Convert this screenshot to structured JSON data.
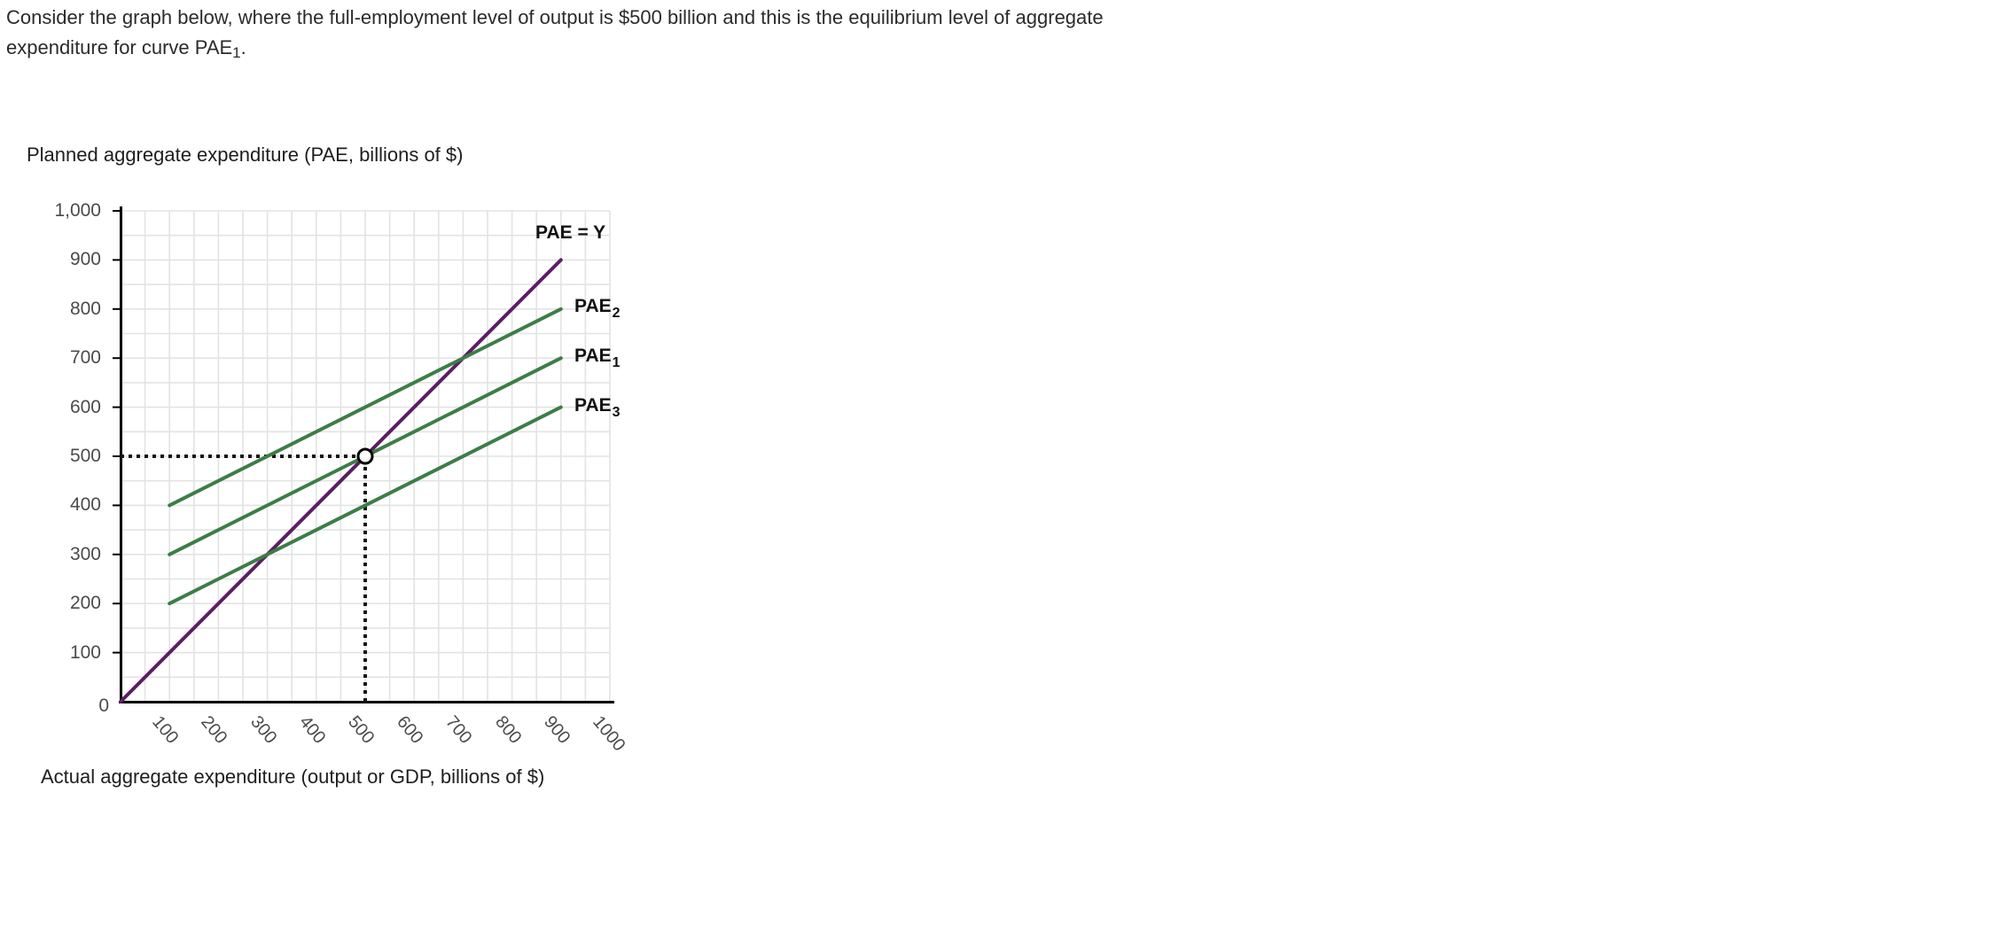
{
  "question": {
    "line1": "Consider the graph below, where the full-employment level of output is $500 billion and this is the equilibrium level of aggregate",
    "line2_pre": "expenditure for curve PAE",
    "line2_sub": "1",
    "line2_end": "."
  },
  "chart": {
    "y_axis_title": "Planned aggregate expenditure (PAE, billions of $)",
    "x_axis_title": "Actual aggregate expenditure (output or GDP, billions of $)",
    "origin_label": "0",
    "y_ticks": [
      {
        "label": "1,000",
        "value": 1000
      },
      {
        "label": "900",
        "value": 900
      },
      {
        "label": "800",
        "value": 800
      },
      {
        "label": "700",
        "value": 700
      },
      {
        "label": "600",
        "value": 600
      },
      {
        "label": "500",
        "value": 500
      },
      {
        "label": "400",
        "value": 400
      },
      {
        "label": "300",
        "value": 300
      },
      {
        "label": "200",
        "value": 200
      },
      {
        "label": "100",
        "value": 100
      }
    ],
    "x_ticks": [
      {
        "label": "100",
        "value": 100
      },
      {
        "label": "200",
        "value": 200
      },
      {
        "label": "300",
        "value": 300
      },
      {
        "label": "400",
        "value": 400
      },
      {
        "label": "500",
        "value": 500
      },
      {
        "label": "600",
        "value": 600
      },
      {
        "label": "700",
        "value": 700
      },
      {
        "label": "800",
        "value": 800
      },
      {
        "label": "900",
        "value": 900
      },
      {
        "label": "1000",
        "value": 1000
      }
    ],
    "annotations": {
      "identity": "PAE = Y",
      "pae2": {
        "main": "PAE",
        "sub": "2"
      },
      "pae1": {
        "main": "PAE",
        "sub": "1"
      },
      "pae3": {
        "main": "PAE",
        "sub": "3"
      }
    }
  },
  "chart_data": {
    "type": "line",
    "title": "",
    "xlabel": "Actual aggregate expenditure (output or GDP, billions of $)",
    "ylabel": "Planned aggregate expenditure (PAE, billions of $)",
    "xlim": [
      0,
      1000
    ],
    "ylim": [
      0,
      1000
    ],
    "grid": true,
    "grid_step": 50,
    "tick_step": 100,
    "series": [
      {
        "key": "identity",
        "name": "PAE = Y",
        "color": "#5b1e64",
        "points": [
          [
            0,
            0
          ],
          [
            900,
            900
          ]
        ]
      },
      {
        "key": "pae2",
        "name": "PAE2",
        "color": "#3d7d46",
        "points": [
          [
            100,
            400
          ],
          [
            900,
            800
          ]
        ]
      },
      {
        "key": "pae1",
        "name": "PAE1",
        "color": "#3d7d46",
        "points": [
          [
            100,
            300
          ],
          [
            900,
            700
          ]
        ]
      },
      {
        "key": "pae3",
        "name": "PAE3",
        "color": "#3d7d46",
        "points": [
          [
            100,
            200
          ],
          [
            900,
            600
          ]
        ]
      }
    ],
    "equilibrium_point": {
      "x": 500,
      "y": 500,
      "marker": "open-circle"
    },
    "guides": [
      {
        "type": "horizontal",
        "y": 500,
        "x_from": 0,
        "x_to": 500
      },
      {
        "type": "vertical",
        "x": 500,
        "y_from": 0,
        "y_to": 500
      }
    ],
    "colors": {
      "grid": "#e3e3e3",
      "axis": "#000000",
      "guide": "#141414",
      "tick_text": "#4b4b4b"
    }
  }
}
